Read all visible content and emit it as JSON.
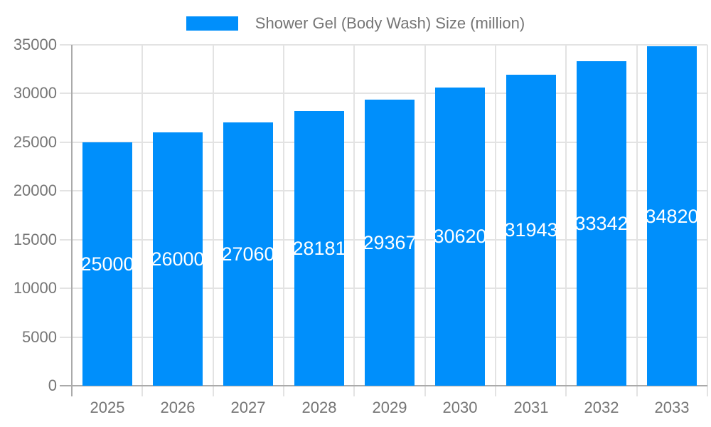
{
  "legend": {
    "label": "Shower Gel (Body Wash) Size (million)"
  },
  "chart_data": {
    "type": "bar",
    "title": "Shower Gel (Body Wash) Size (million)",
    "categories": [
      "2025",
      "2026",
      "2027",
      "2028",
      "2029",
      "2030",
      "2031",
      "2032",
      "2033"
    ],
    "values": [
      25000,
      26000,
      27060,
      28181,
      29367,
      30620,
      31943,
      33342,
      34820
    ],
    "xlabel": "",
    "ylabel": "",
    "ylim": [
      0,
      35000
    ],
    "ytick_step": 5000,
    "yticks": [
      0,
      5000,
      10000,
      15000,
      20000,
      25000,
      30000,
      35000
    ],
    "grid": true,
    "legend_position": "top",
    "colors": {
      "bar": "#008FFB",
      "data_label": "#FFFFFF",
      "tick_label": "#757575",
      "gridline": "#E3E3E3",
      "axis_line": "#AAAAAA",
      "background": "#FFFFFF"
    }
  }
}
